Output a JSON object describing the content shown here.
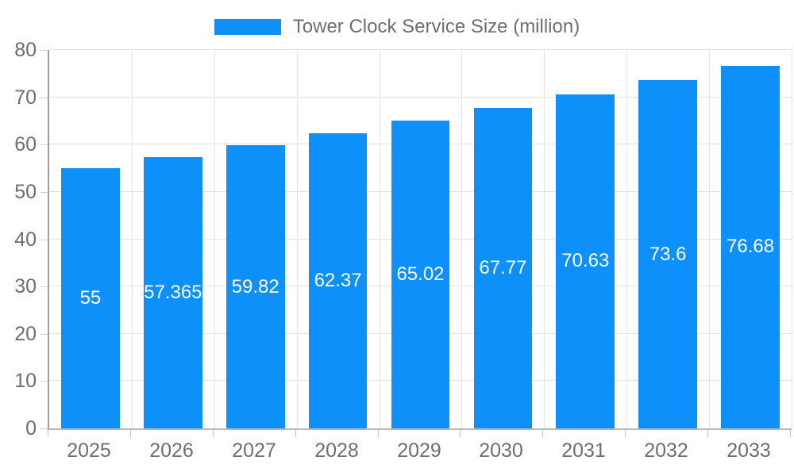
{
  "chart_data": {
    "type": "bar",
    "title": "Tower Clock Service Size (million)",
    "categories": [
      "2025",
      "2026",
      "2027",
      "2028",
      "2029",
      "2030",
      "2031",
      "2032",
      "2033"
    ],
    "values": [
      55,
      57.365,
      59.82,
      62.37,
      65.02,
      67.77,
      70.63,
      73.6,
      76.68
    ],
    "labels": [
      "55",
      "57.365",
      "59.82",
      "62.37",
      "65.02",
      "67.77",
      "70.63",
      "73.6",
      "76.68"
    ],
    "xlabel": "",
    "ylabel": "",
    "ylim": [
      0,
      80
    ],
    "yticks": [
      0,
      10,
      20,
      30,
      40,
      50,
      60,
      70,
      80
    ],
    "grid": true,
    "legend_position": "top",
    "bar_color": "#0d90fa",
    "bar_label_color": "#ffffff",
    "axis_text_color": "#6e6e6e",
    "grid_color": "#e2e2e2",
    "axis_line_color": "#9e9e9e",
    "baseline_color": "#b9b9b9",
    "y_tick_color": "#d6d6d6",
    "x_tick_color": "#c4c4c4",
    "background_color": "#ffffff"
  }
}
